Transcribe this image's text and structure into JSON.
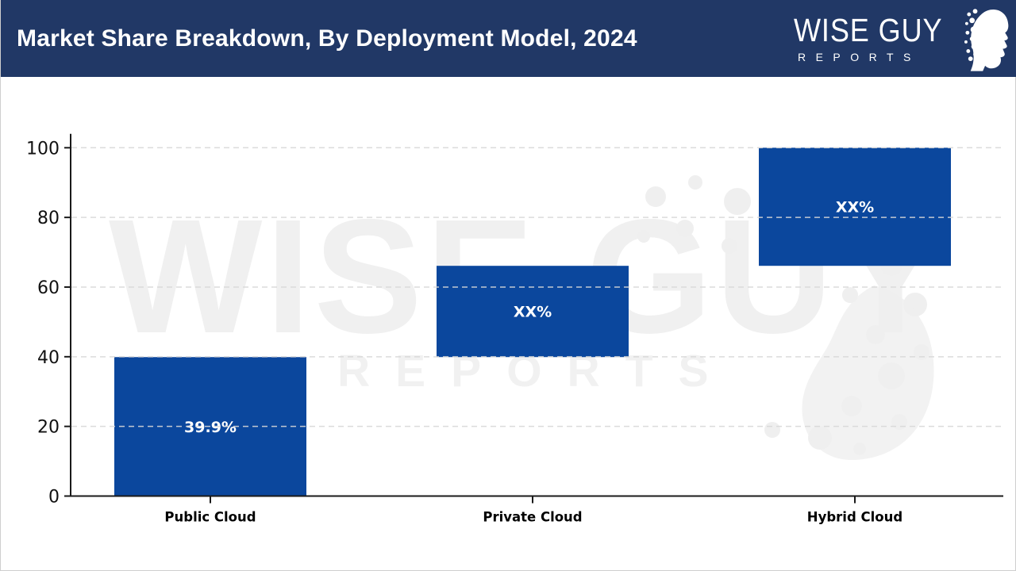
{
  "header": {
    "title": "Market Share Breakdown, By Deployment Model, 2024",
    "bg_color": "#213866",
    "logo": {
      "line1": "WISE GUY",
      "line2": "REPORTS"
    }
  },
  "watermark": {
    "line1": "WISE GUY",
    "line2": "REPORTS"
  },
  "chart_data": {
    "type": "bar",
    "variant": "waterfall",
    "title": "Market Share Breakdown, By Deployment Model, 2024",
    "xlabel": "",
    "ylabel": "",
    "categories": [
      "Public Cloud",
      "Private Cloud",
      "Hybrid Cloud"
    ],
    "segments": [
      {
        "category": "Public Cloud",
        "start": 0,
        "end": 39.9,
        "label": "39.9%"
      },
      {
        "category": "Private Cloud",
        "start": 39.9,
        "end": 66.1,
        "label": "XX%"
      },
      {
        "category": "Hybrid Cloud",
        "start": 66.1,
        "end": 100,
        "label": "XX%"
      }
    ],
    "yticks": [
      0,
      20,
      40,
      60,
      80,
      100
    ],
    "ylim": [
      0,
      104
    ],
    "grid": true,
    "grid_style": "dashed",
    "legend": "none",
    "colors": {
      "bar": "#0b479d",
      "bar_label": "#ffffff",
      "grid": "#d7d7d7",
      "axis": "#1a1a1a",
      "tick_label": "#111111"
    }
  }
}
